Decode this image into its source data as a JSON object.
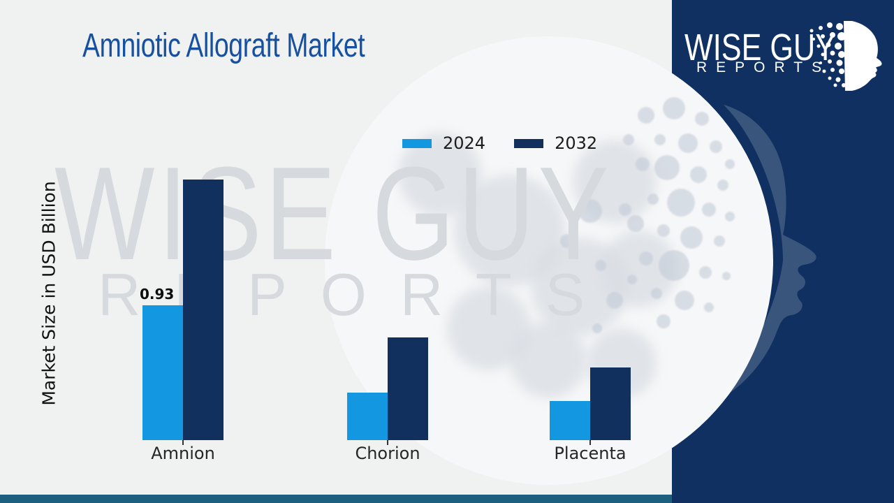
{
  "header": {
    "title": "Amniotic Allograft Market"
  },
  "brand": {
    "line1": "WISE GUY",
    "line2": "REPORTS"
  },
  "watermark": {
    "line1": "WISE GUY",
    "line2": "REPORTS"
  },
  "colors": {
    "title_accent": "#17509f",
    "brand_panel": "#0f3060",
    "bottom_strip": "#1d5f7e",
    "series_2024": "#1297e0",
    "series_2032": "#12305e"
  },
  "chart_data": {
    "type": "bar",
    "title": "Amniotic Allograft Market",
    "xlabel": "",
    "ylabel": "Market Size in USD Billion",
    "categories": [
      "Amnion",
      "Chorion",
      "Placenta"
    ],
    "series": [
      {
        "name": "2024",
        "color": "#1297e0",
        "values": [
          0.93,
          0.33,
          0.27
        ]
      },
      {
        "name": "2032",
        "color": "#12305e",
        "values": [
          1.8,
          0.71,
          0.5
        ]
      }
    ],
    "value_labels": [
      {
        "series": "2024",
        "category": "Amnion",
        "text": "0.93"
      }
    ],
    "ylim": [
      0,
      2.0
    ],
    "grid": false,
    "legend_position": "top-right",
    "y_axis_ticks_visible": false
  }
}
